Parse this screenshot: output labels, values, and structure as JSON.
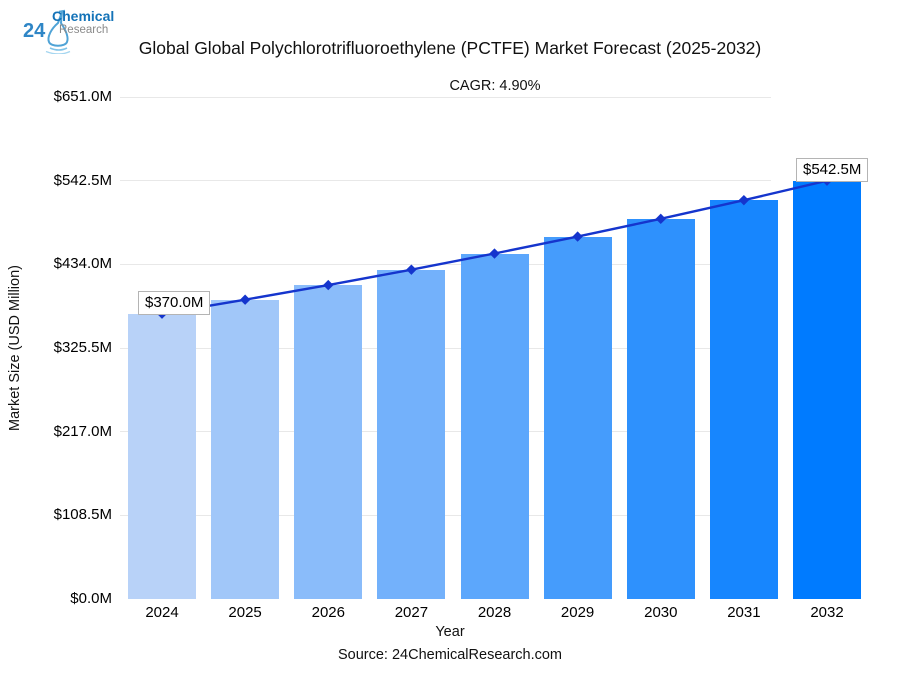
{
  "logo": {
    "number": "24",
    "line1": "Chemical",
    "line2": "Research"
  },
  "header": {
    "title": "Global Global Polychlorotrifluoroethylene (PCTFE) Market Forecast (2025-2032)",
    "subtitle": "CAGR: 4.90%"
  },
  "footer": {
    "source": "Source: 24ChemicalResearch.com"
  },
  "chart_data": {
    "type": "bar",
    "title": "Global Global Polychlorotrifluoroethylene (PCTFE) Market Forecast (2025-2032)",
    "subtitle": "CAGR: 4.90%",
    "xlabel": "Year",
    "ylabel": "Market Size (USD Million)",
    "categories": [
      "2024",
      "2025",
      "2026",
      "2027",
      "2028",
      "2029",
      "2030",
      "2031",
      "2032"
    ],
    "series": [
      {
        "name": "Market Size (bar)",
        "type": "bar",
        "values": [
          370.0,
          388.1,
          407.1,
          427.1,
          448.0,
          470.0,
          493.0,
          517.2,
          542.5
        ]
      },
      {
        "name": "Market Size (trend line)",
        "type": "line",
        "values": [
          370.0,
          388.1,
          407.1,
          427.1,
          448.0,
          470.0,
          493.0,
          517.2,
          542.5
        ]
      }
    ],
    "ylim": [
      0,
      651
    ],
    "ytick_values": [
      0,
      108.5,
      217.0,
      325.5,
      434.0,
      542.5,
      651.0
    ],
    "ytick_labels": [
      "$0.0M",
      "$108.5M",
      "$217.0M",
      "$325.5M",
      "$434.0M",
      "$542.5M",
      "$651.0M"
    ],
    "annotations": [
      {
        "category": "2024",
        "text": "$370.0M"
      },
      {
        "category": "2032",
        "text": "$542.5M"
      }
    ],
    "grid": true,
    "legend": false,
    "colors": {
      "bar_start": "#B8D2F8",
      "bar_end": "#007BFF",
      "line": "#1535CD",
      "grid": "#E8E8E8"
    }
  }
}
